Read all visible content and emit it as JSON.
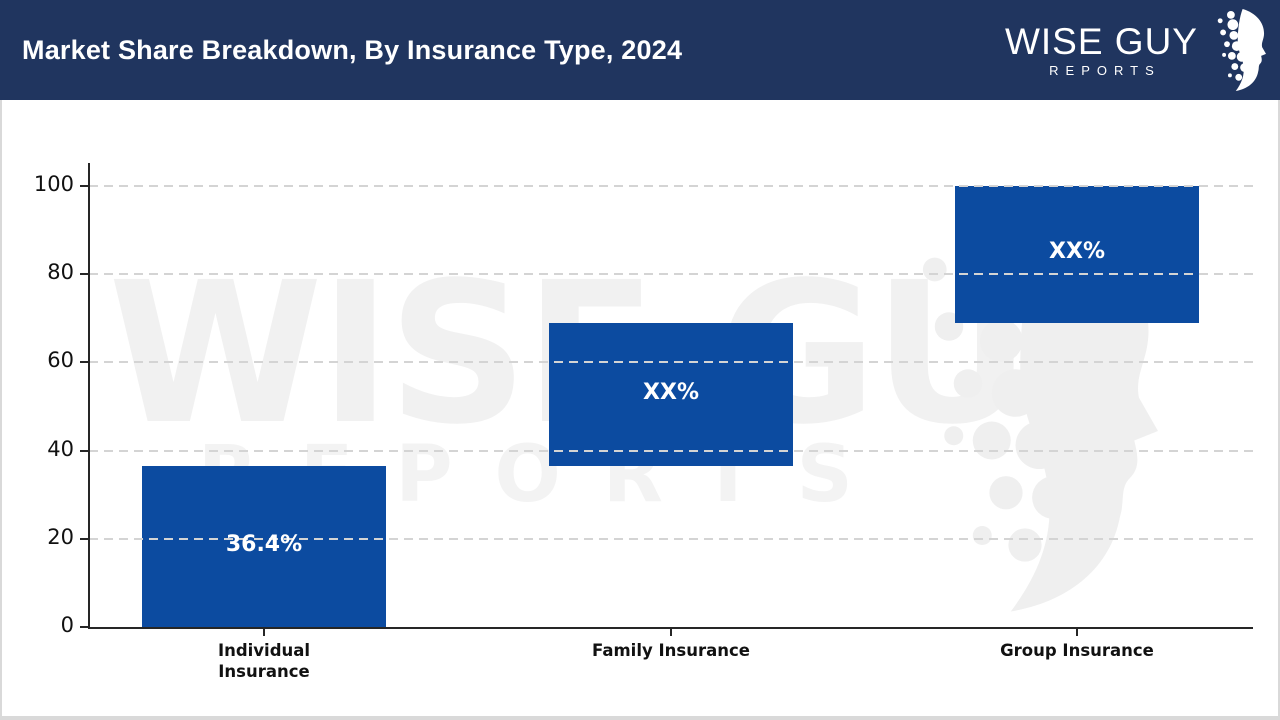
{
  "header": {
    "title": "Market Share Breakdown, By Insurance Type, 2024",
    "logo": {
      "line1": "WISE GUY",
      "line2": "REPORTS"
    }
  },
  "watermark": {
    "line1": "WISE GUY",
    "line2": "REPORTS"
  },
  "chart_data": {
    "type": "bar",
    "variant": "waterfall",
    "title": "Market Share Breakdown, By Insurance Type, 2024",
    "categories": [
      "Individual Insurance",
      "Family Insurance",
      "Group Insurance"
    ],
    "bars": [
      {
        "category": "Individual Insurance",
        "label_lines": [
          "Individual",
          "Insurance"
        ],
        "start": 0,
        "end": 36.4,
        "value_label": "36.4%"
      },
      {
        "category": "Family Insurance",
        "label_lines": [
          "Family Insurance"
        ],
        "start": 36.4,
        "end": 69,
        "value_label": "XX%"
      },
      {
        "category": "Group Insurance",
        "label_lines": [
          "Group Insurance"
        ],
        "start": 69,
        "end": 100,
        "value_label": "XX%"
      }
    ],
    "ylim": [
      0,
      100
    ],
    "yticks": [
      0,
      20,
      40,
      60,
      80,
      100
    ],
    "grid": {
      "axis": "y",
      "style": "dashed",
      "drawn_above_bars": true
    },
    "legend": "none",
    "colors": {
      "bar": "#0c4ba0",
      "bar_label": "#ffffff",
      "grid": "#d4d4d4",
      "axis": "#262626",
      "tick_label": "#111111",
      "header_bg": "#20355f",
      "header_text": "#ffffff",
      "watermark": "#f1f1f1"
    }
  }
}
